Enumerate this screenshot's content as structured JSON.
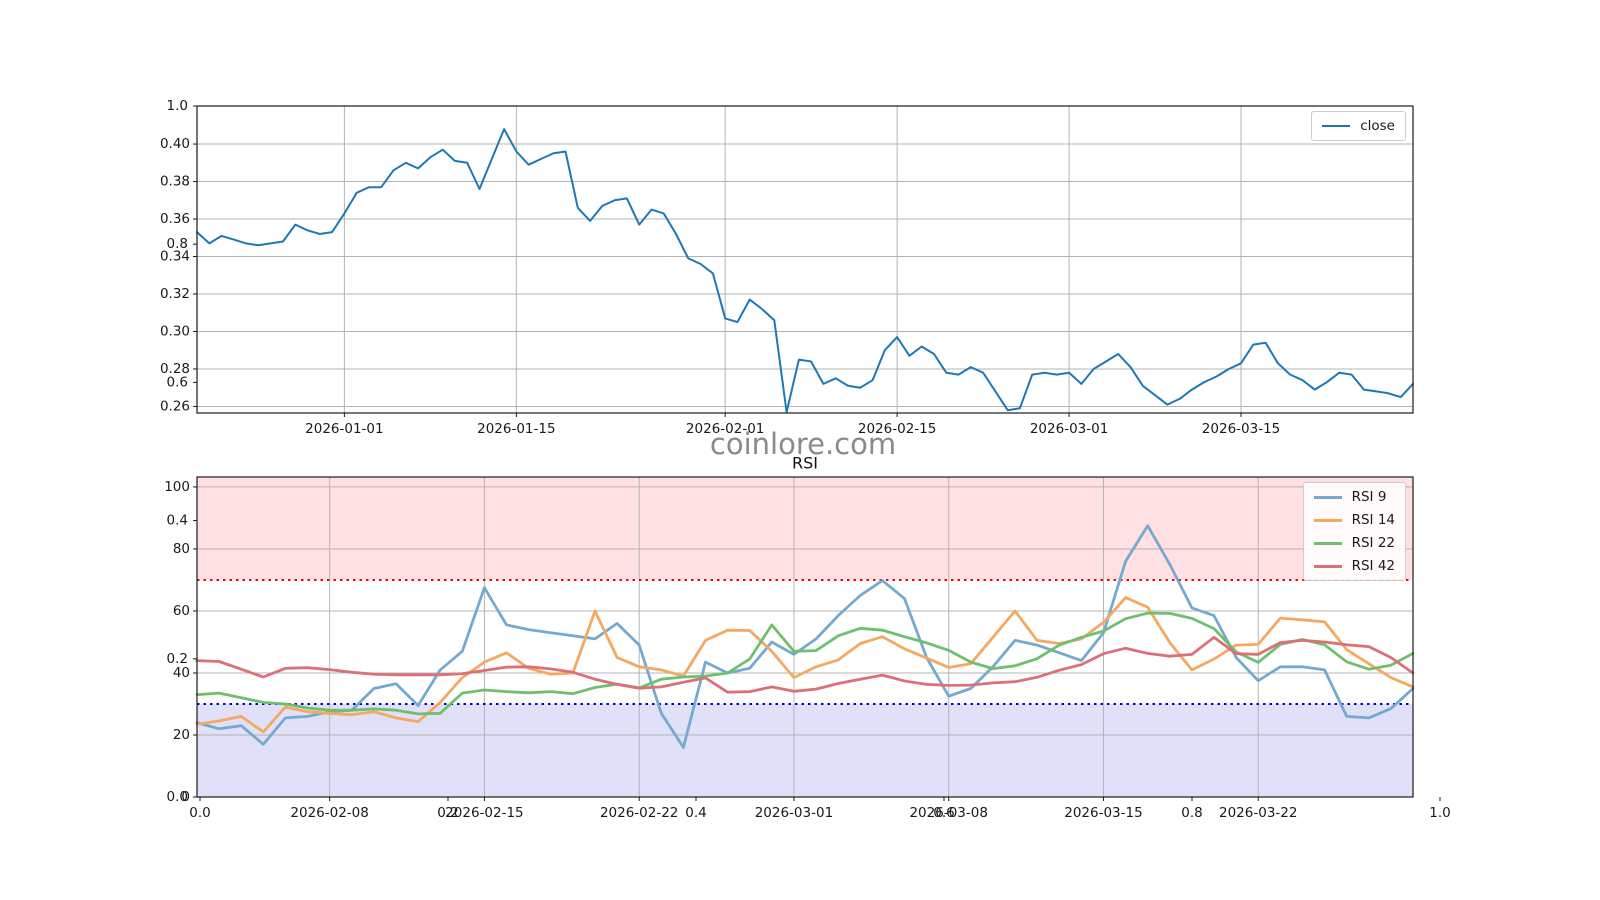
{
  "watermark": "coinlore.com",
  "overlay_axis": {
    "left_labels": [
      "1.0",
      "0.8",
      "0.6",
      "0.4",
      "0.2",
      "0.0"
    ],
    "bottom_labels": [
      "0.0",
      "0.2",
      "0.4",
      "0.6",
      "0.8",
      "1.0"
    ]
  },
  "styles": {
    "grid_color": "#b4b4b4",
    "spine_color": "#1a1a1a",
    "tick_label_color": "#1a1a1a",
    "watermark_color": "#8a8a8a",
    "legend_border": "#cccccc",
    "legend_bg": "rgba(255,255,255,0.85)"
  },
  "chart_data": [
    {
      "type": "line",
      "panel": "price",
      "title": "",
      "grid": true,
      "legend_position": "upper right",
      "x_start_date": "2025-12-20",
      "x_interval": "daily",
      "xticks": [
        "2026-01-01",
        "2026-01-15",
        "2026-02-01",
        "2026-02-15",
        "2026-03-01",
        "2026-03-15"
      ],
      "ylim": [
        0.2565,
        0.4203
      ],
      "yticks": [
        0.26,
        0.28,
        0.3,
        0.32,
        0.34,
        0.36,
        0.38,
        0.4
      ],
      "ytick_labels": [
        "0.26",
        "0.28",
        "0.30",
        "0.32",
        "0.34",
        "0.36",
        "0.38",
        "0.40"
      ],
      "series": [
        {
          "name": "close",
          "color": "#1f77b4",
          "width": 2,
          "values": [
            0.353,
            0.347,
            0.351,
            0.349,
            0.347,
            0.346,
            0.347,
            0.348,
            0.357,
            0.354,
            0.352,
            0.353,
            0.363,
            0.374,
            0.377,
            0.377,
            0.386,
            0.39,
            0.387,
            0.393,
            0.397,
            0.391,
            0.39,
            0.376,
            0.392,
            0.408,
            0.396,
            0.389,
            0.392,
            0.395,
            0.396,
            0.366,
            0.359,
            0.367,
            0.37,
            0.371,
            0.357,
            0.365,
            0.363,
            0.352,
            0.339,
            0.336,
            0.331,
            0.307,
            0.305,
            0.317,
            0.312,
            0.306,
            0.257,
            0.285,
            0.284,
            0.272,
            0.275,
            0.271,
            0.27,
            0.274,
            0.29,
            0.297,
            0.287,
            0.292,
            0.288,
            0.278,
            0.277,
            0.281,
            0.278,
            0.268,
            0.258,
            0.259,
            0.277,
            0.278,
            0.277,
            0.278,
            0.272,
            0.28,
            0.284,
            0.288,
            0.281,
            0.271,
            0.266,
            0.261,
            0.264,
            0.269,
            0.273,
            0.276,
            0.28,
            0.283,
            0.293,
            0.294,
            0.283,
            0.277,
            0.274,
            0.269,
            0.273,
            0.278,
            0.277,
            0.269,
            0.268,
            0.267,
            0.265,
            0.272
          ]
        }
      ]
    },
    {
      "type": "line",
      "panel": "rsi",
      "title": "RSI",
      "grid": true,
      "legend_position": "upper right",
      "x_start_date": "2026-02-02",
      "x_interval": "daily",
      "xticks": [
        "2026-02-08",
        "2026-02-15",
        "2026-02-22",
        "2026-03-01",
        "2026-03-08",
        "2026-03-15",
        "2026-03-22"
      ],
      "ylim": [
        0,
        103.2
      ],
      "yticks": [
        0,
        20,
        40,
        60,
        80,
        100
      ],
      "ytick_labels": [
        "0",
        "20",
        "40",
        "60",
        "80",
        "100"
      ],
      "bands": [
        {
          "label": "overbought-zone",
          "from": 70,
          "to": 103.2,
          "color": "rgba(255,0,25,0.12)"
        },
        {
          "label": "oversold-zone",
          "from": 0,
          "to": 30,
          "color": "rgba(0,0,204,0.12)"
        }
      ],
      "ref_lines": [
        {
          "label": "overbought-threshold",
          "value": 70,
          "color": "#ff0000",
          "style": "dotted"
        },
        {
          "label": "oversold-threshold",
          "value": 30,
          "color": "#0000cd",
          "style": "dotted"
        }
      ],
      "series": [
        {
          "name": "RSI 9",
          "color": "#76a9d1",
          "width": 2.8,
          "values": [
            24,
            22,
            23,
            17,
            25.5,
            26,
            27.5,
            28,
            35,
            36.5,
            29.5,
            41,
            47,
            67.5,
            55.5,
            54,
            53,
            52,
            51,
            56,
            49,
            27,
            16,
            43.5,
            40,
            41.5,
            50,
            46,
            51,
            58.5,
            65,
            69.8,
            64,
            45,
            32.5,
            35,
            42,
            50.5,
            49,
            46.5,
            44,
            53,
            76,
            87.5,
            75,
            61,
            58.5,
            45,
            37.5,
            42,
            42,
            41,
            26,
            25.5,
            28.5,
            35
          ]
        },
        {
          "name": "RSI 14",
          "color": "#f6a861",
          "width": 2.8,
          "values": [
            23.5,
            24.5,
            26,
            21,
            29,
            27.5,
            27,
            26.5,
            27.5,
            25.5,
            24.3,
            30.5,
            38.5,
            43.5,
            46.5,
            41.5,
            39.6,
            40,
            60,
            45,
            42,
            41,
            39,
            50.5,
            53.8,
            53.7,
            47,
            38.5,
            42,
            44.2,
            49.5,
            51.7,
            47.8,
            44.8,
            41.8,
            43,
            51.5,
            60,
            50.5,
            49.5,
            51,
            56.3,
            64.3,
            61.2,
            49.8,
            41,
            44.5,
            49,
            49.2,
            57.7,
            57.1,
            56.5,
            47.5,
            43,
            38.5,
            35.5
          ]
        },
        {
          "name": "RSI 22",
          "color": "#6ec06e",
          "width": 2.8,
          "values": [
            33,
            33.5,
            32,
            30.5,
            30,
            28.7,
            28,
            28,
            28.4,
            28,
            26.8,
            27,
            33.5,
            34.5,
            34,
            33.6,
            34,
            33.3,
            35.3,
            36.4,
            35.2,
            38,
            38.7,
            39,
            40,
            44.5,
            55.5,
            47,
            47.2,
            52,
            54.4,
            53.8,
            51.7,
            49.7,
            47.3,
            43.5,
            41.4,
            42.3,
            44.6,
            49,
            51.5,
            53.5,
            57.5,
            59.3,
            59.2,
            57.6,
            54.3,
            46.8,
            43.4,
            49.2,
            50.8,
            49.1,
            43.6,
            41.2,
            42.5,
            46.3
          ]
        },
        {
          "name": "RSI 42",
          "color": "#dd6f77",
          "width": 2.8,
          "values": [
            44,
            43.7,
            41.2,
            38.7,
            41.5,
            41.7,
            41.1,
            40.2,
            39.6,
            39.4,
            39.4,
            39.4,
            39.8,
            40.8,
            41.9,
            42,
            41.3,
            40.2,
            38,
            36.3,
            35.1,
            35.5,
            37,
            38.4,
            33.8,
            34,
            35.5,
            34.1,
            34.8,
            36.6,
            38,
            39.3,
            37.4,
            36.3,
            36,
            36.1,
            36.8,
            37.2,
            38.6,
            40.9,
            42.7,
            46.2,
            48,
            46.3,
            45.4,
            46,
            51.5,
            46.2,
            46,
            49.8,
            50.5,
            50,
            49.1,
            48.5,
            45,
            40
          ]
        }
      ]
    }
  ]
}
